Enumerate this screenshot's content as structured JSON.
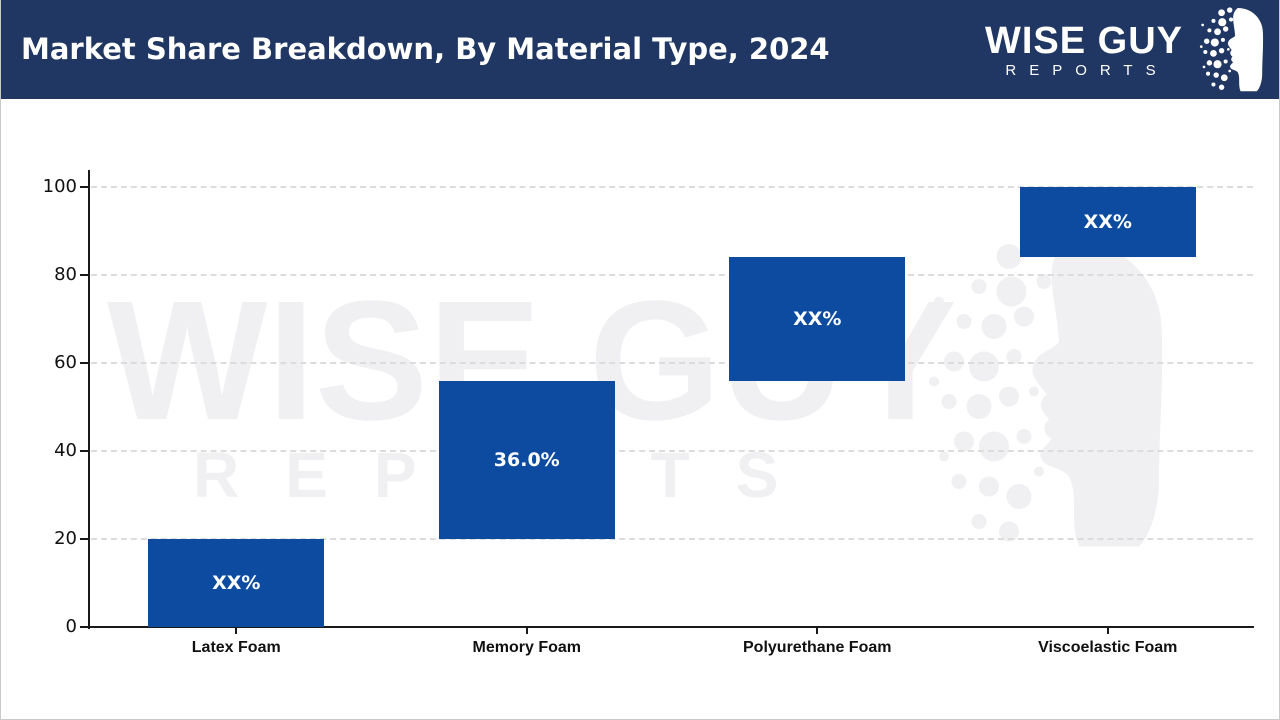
{
  "header": {
    "title": "Market Share Breakdown, By Material Type, 2024",
    "logo": {
      "line1": "WISE GUY",
      "line2": "REPORTS"
    }
  },
  "watermark": {
    "line1": "WISE GUY",
    "line2": "REPORTS"
  },
  "colors": {
    "header_bg": "#213763",
    "bar": "#0d4ba0",
    "bar_label_text": "#ffffff",
    "grid": "#dcdcdc",
    "axis": "#1a1a1a",
    "watermark": "#f0f0f2",
    "page_border": "#c9c9c9"
  },
  "chart_data": {
    "type": "bar",
    "subtype": "waterfall",
    "title": "Market Share Breakdown, By Material Type, 2024",
    "categories": [
      "Latex Foam",
      "Memory Foam",
      "Polyurethane Foam",
      "Viscoelastic Foam"
    ],
    "segments": [
      {
        "category": "Latex Foam",
        "start": 0,
        "end": 20,
        "label": "XX%"
      },
      {
        "category": "Memory Foam",
        "start": 20,
        "end": 56,
        "label": "36.0%",
        "value": 36.0
      },
      {
        "category": "Polyurethane Foam",
        "start": 56,
        "end": 84,
        "label": "XX%"
      },
      {
        "category": "Viscoelastic Foam",
        "start": 84,
        "end": 100,
        "label": "XX%"
      }
    ],
    "xlabel": "",
    "ylabel": "",
    "ylim": [
      0,
      100
    ],
    "yticks": [
      0,
      20,
      40,
      60,
      80,
      100
    ],
    "grid": "horizontal-dashed",
    "legend": "none"
  }
}
